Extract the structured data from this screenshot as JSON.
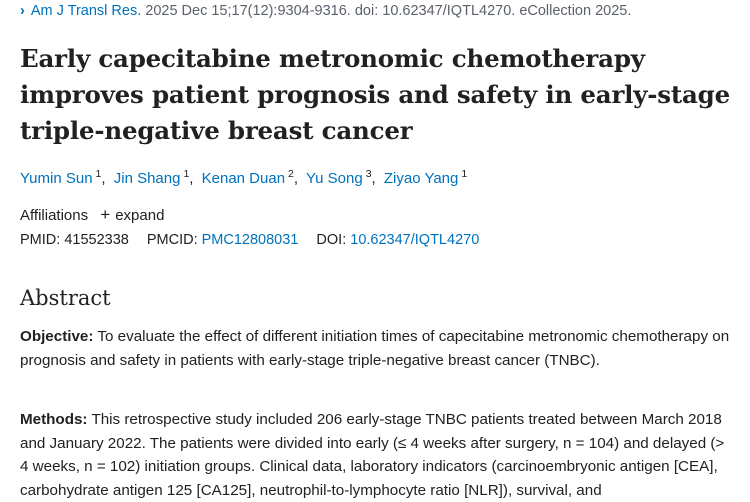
{
  "citation": {
    "journal": "Am J Transl Res.",
    "details": "2025 Dec 15;17(12):9304-9316. doi: 10.62347/IQTL4270. eCollection 2025."
  },
  "title": "Early capecitabine metronomic chemotherapy improves patient prognosis and safety in early-stage triple-negative breast cancer",
  "authors": [
    {
      "name": "Yumin Sun",
      "aff": "1"
    },
    {
      "name": "Jin Shang",
      "aff": "1"
    },
    {
      "name": "Kenan Duan",
      "aff": "2"
    },
    {
      "name": "Yu Song",
      "aff": "3"
    },
    {
      "name": "Ziyao Yang",
      "aff": "1"
    }
  ],
  "affiliations": {
    "label": "Affiliations",
    "expand_label": "expand"
  },
  "identifiers": {
    "pmid_label": "PMID:",
    "pmid": "41552338",
    "pmcid_label": "PMCID:",
    "pmcid": "PMC12808031",
    "doi_label": "DOI:",
    "doi": "10.62347/IQTL4270"
  },
  "abstract": {
    "heading": "Abstract",
    "objective_label": "Objective:",
    "objective_text": "To evaluate the effect of different initiation times of capecitabine metronomic chemotherapy on prognosis and safety in patients with early-stage triple-negative breast cancer (TNBC).",
    "methods_label": "Methods:",
    "methods_text": "This retrospective study included 206 early-stage TNBC patients treated between March 2018 and January 2022. The patients were divided into early (≤ 4 weeks after surgery, n = 104) and delayed (> 4 weeks, n = 102) initiation groups. Clinical data, laboratory indicators (carcinoembryonic antigen [CEA], carbohydrate antigen 125 [CA125], neutrophil-to-lymphocyte ratio [NLR]), survival, and"
  },
  "colors": {
    "link": "#0071bc",
    "text": "#212121",
    "muted": "#5b616b"
  },
  "icons": {
    "citation_chevron": "chevron-right-icon",
    "expand": "plus-icon"
  }
}
